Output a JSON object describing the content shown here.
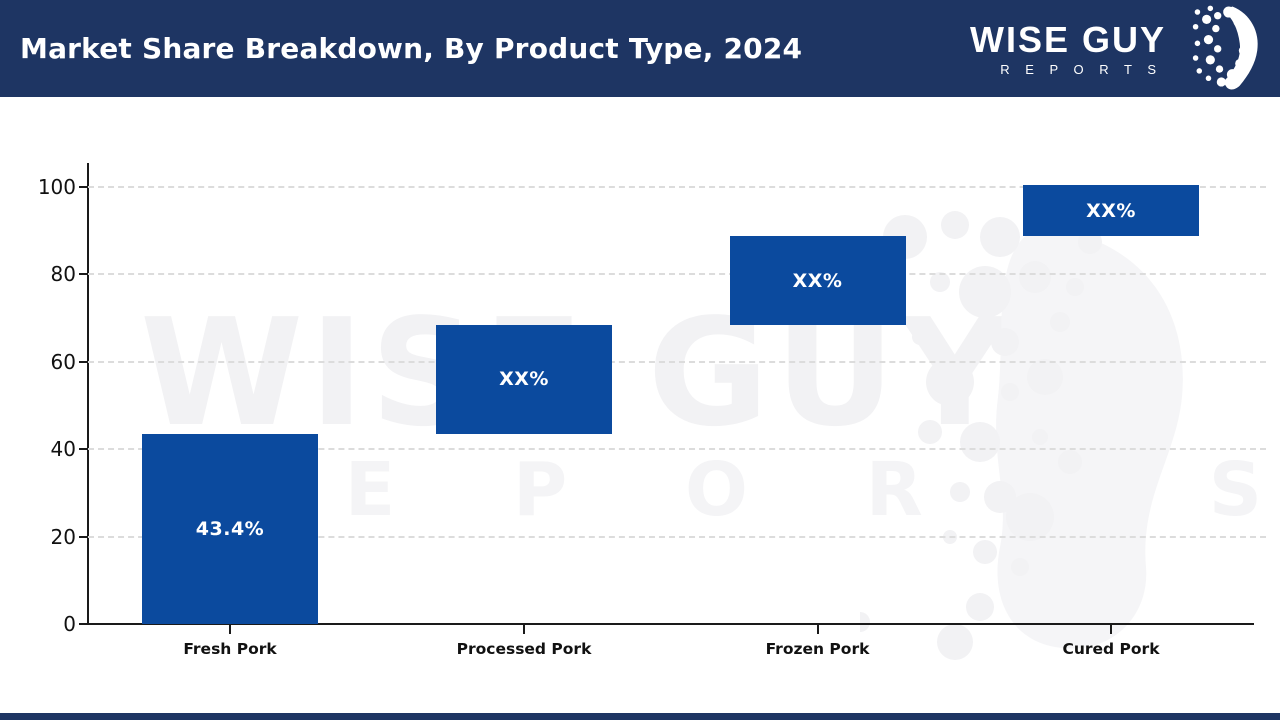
{
  "header": {
    "title": "Market Share Breakdown, By Product Type, 2024",
    "logo": {
      "line1": "WISE GUY",
      "line2": "R E P O R T S"
    }
  },
  "watermark": {
    "line1": "WISE GUY",
    "line2": "R E P O R T S"
  },
  "colors": {
    "header_bg": "#1e3563",
    "footer_bg": "#1e3563",
    "bar_fill": "#0b4a9e",
    "bar_value_text": "#ffffff",
    "axis": "#1a1a1a",
    "grid": "#dcdcdc",
    "tick_text": "#111111",
    "watermark_text": "#f2f2f4"
  },
  "chart_data": {
    "type": "bar",
    "subtype": "waterfall",
    "title": "Market Share Breakdown, By Product Type, 2024",
    "xlabel": "",
    "ylabel": "",
    "ylim": [
      0,
      105
    ],
    "y_ticks": [
      0,
      20,
      40,
      60,
      80,
      100
    ],
    "grid": "horizontal-dashed",
    "legend": "none",
    "categories": [
      "Fresh Pork",
      "Processed Pork",
      "Frozen Pork",
      "Cured Pork"
    ],
    "segments": [
      {
        "category": "Fresh Pork",
        "start": 0,
        "end": 43.4,
        "label": "43.4%"
      },
      {
        "category": "Processed Pork",
        "start": 43.4,
        "end": 68.4,
        "label": "XX%"
      },
      {
        "category": "Frozen Pork",
        "start": 68.4,
        "end": 88.6,
        "label": "XX%"
      },
      {
        "category": "Cured Pork",
        "start": 88.6,
        "end": 100.3,
        "label": "XX%"
      }
    ]
  }
}
